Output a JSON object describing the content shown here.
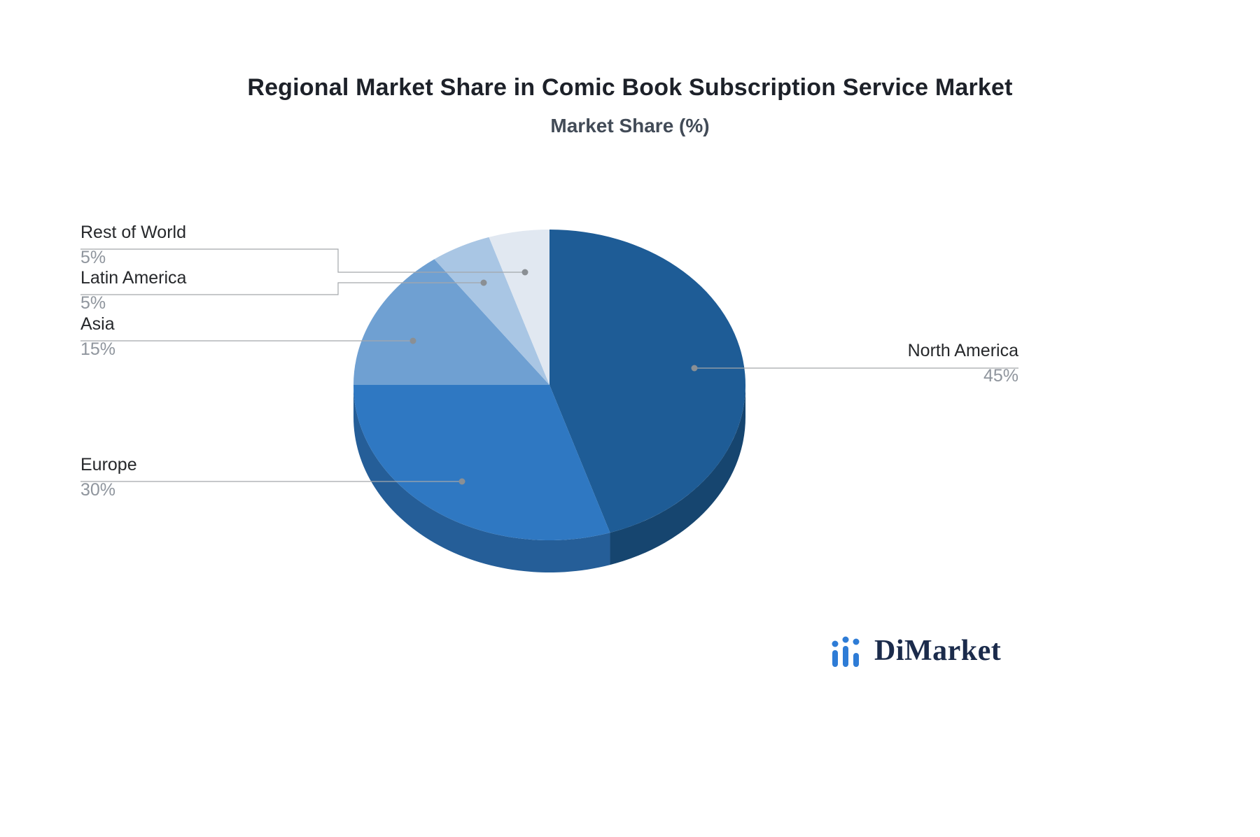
{
  "chart_data": {
    "type": "pie",
    "title": "Regional Market Share in Comic Book Subscription Service Market",
    "subtitle": "Market Share (%)",
    "unit": "%",
    "start_angle_deg": -90,
    "direction": "clockwise",
    "legend_position": "none",
    "label_style": "callout",
    "slices": [
      {
        "label": "North America",
        "value": 45,
        "value_label": "45%",
        "color": "#1E5C96",
        "side_color": "#16456F"
      },
      {
        "label": "Europe",
        "value": 30,
        "value_label": "30%",
        "color": "#2F78C2",
        "side_color": "#255E98"
      },
      {
        "label": "Asia",
        "value": 15,
        "value_label": "15%",
        "color": "#6FA0D2",
        "side_color": "#587FA6"
      },
      {
        "label": "Latin America",
        "value": 5,
        "value_label": "5%",
        "color": "#A9C6E4",
        "side_color": "#8AA3BD"
      },
      {
        "label": "Rest of World",
        "value": 5,
        "value_label": "5%",
        "color": "#E1E8F1",
        "side_color": "#BFC9D6"
      }
    ],
    "colors_note": {
      "callout_line": "#A3A7AB",
      "callout_dot": "#8A8F94",
      "title_color": "#1D2129",
      "subtitle_color": "#424B57",
      "value_text_color": "#8F959D"
    }
  },
  "logo": {
    "text": "DiMarket",
    "icon": "bar-chart-icon",
    "text_color": "#1B2B4B",
    "icon_color": "#2E7CD6"
  }
}
